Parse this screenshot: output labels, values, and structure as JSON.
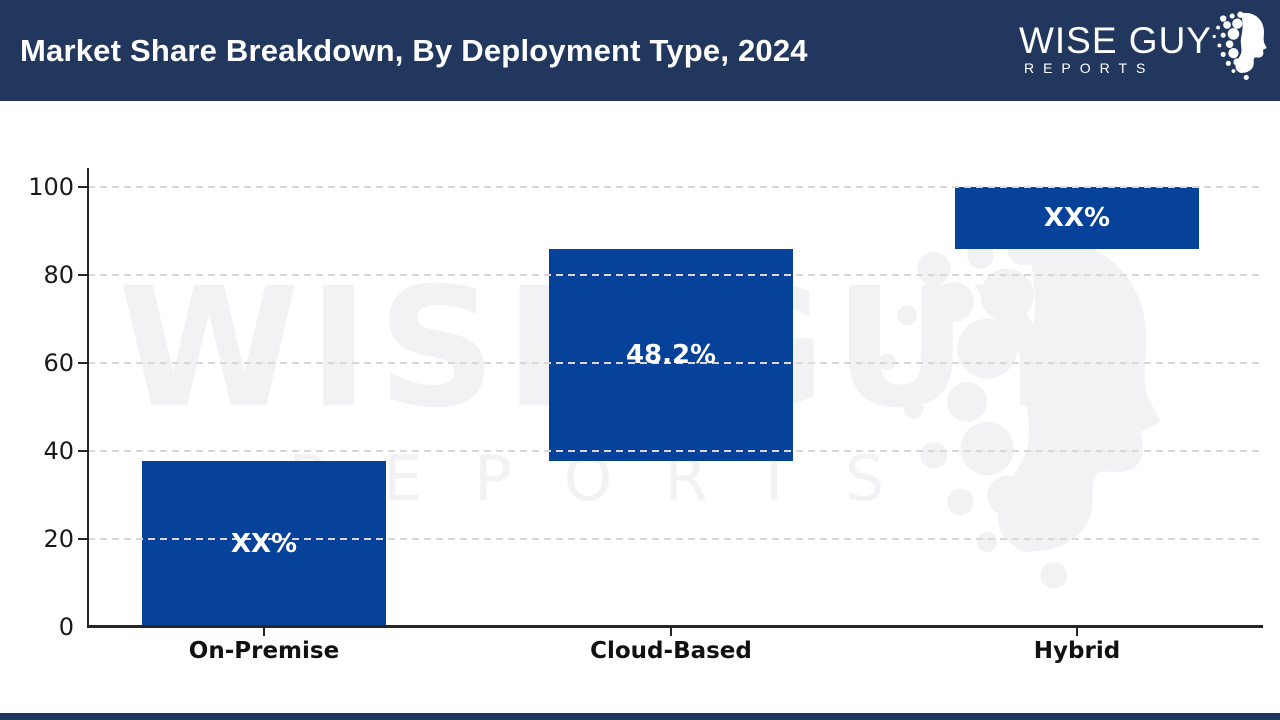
{
  "header": {
    "title": "Market Share Breakdown, By Deployment Type, 2024",
    "logo": {
      "line1": "WISE GUY",
      "line2": "REPORTS"
    }
  },
  "watermark": {
    "line1": "WISE GUY",
    "line2": "REPORTS"
  },
  "colors": {
    "header_bg": "#22375e",
    "bar_blue": "#07429a",
    "grid": "#d9d9d9",
    "axis": "#262626",
    "bar_label": "#ffffff",
    "watermark": "#f2f2f4"
  },
  "chart_data": {
    "type": "bar",
    "subtype": "waterfall",
    "title": "Market Share Breakdown, By Deployment Type, 2024",
    "categories": [
      "On-Premise",
      "Cloud-Based",
      "Hybrid"
    ],
    "series": [
      {
        "name": "Market Share (%)",
        "segments": [
          {
            "category": "On-Premise",
            "start": 0,
            "end": 37.7,
            "label": "XX%"
          },
          {
            "category": "Cloud-Based",
            "start": 37.7,
            "end": 85.9,
            "label": "48.2%"
          },
          {
            "category": "Hybrid",
            "start": 85.9,
            "end": 100,
            "label": "XX%"
          }
        ]
      }
    ],
    "ylim": [
      0,
      100
    ],
    "yticks": [
      0,
      20,
      40,
      60,
      80,
      100
    ],
    "xlabel": "",
    "ylabel": "",
    "grid": "horizontal-dashed",
    "legend": "none"
  }
}
